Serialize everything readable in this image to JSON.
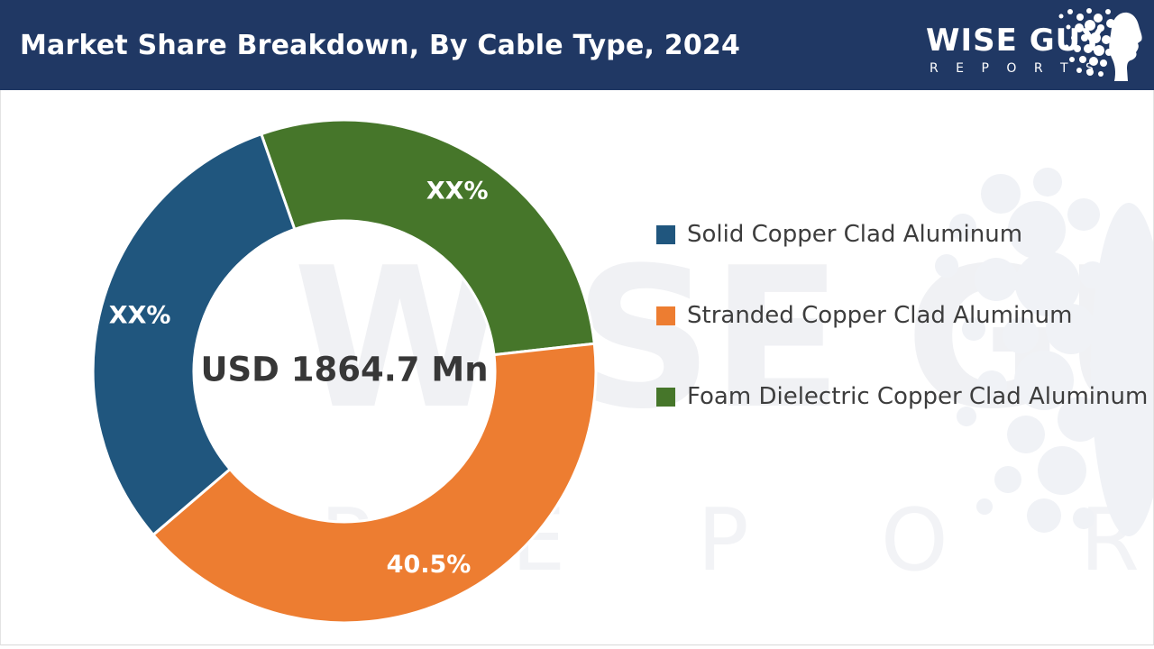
{
  "header": {
    "title": "Market Share Breakdown, By Cable Type, 2024",
    "logo": {
      "line1": "WISE GUY",
      "line2": "R E P O R T S"
    }
  },
  "watermark": {
    "line1": "WISE GUY",
    "line2": "R E P O R T S"
  },
  "chart_data": {
    "type": "pie",
    "subtype": "donut",
    "title": "Market Share Breakdown, By Cable Type, 2024",
    "center_label": "USD 1864.7 Mn",
    "start_angle_deg": -19.3,
    "legend_position": "right",
    "grid": false,
    "segments": [
      {
        "name": "Foam Dielectric Copper Clad Aluminum",
        "value_pct": 28.6,
        "value_shown": "XX%",
        "color": "#46762A"
      },
      {
        "name": "Stranded Copper Clad Aluminum",
        "value_pct": 40.5,
        "value_shown": "40.5%",
        "color": "#ED7D31"
      },
      {
        "name": "Solid Copper Clad Aluminum",
        "value_pct": 30.9,
        "value_shown": "XX%",
        "color": "#20567E"
      }
    ]
  },
  "legend": {
    "items": [
      {
        "label": "Solid Copper Clad Aluminum",
        "color": "#20567E"
      },
      {
        "label": "Stranded Copper Clad Aluminum",
        "color": "#ED7D31"
      },
      {
        "label": "Foam Dielectric Copper Clad Aluminum",
        "color": "#46762A"
      }
    ]
  },
  "colors": {
    "header_bg": "#203864",
    "slice_label_text": "#FFFFFF",
    "center_text": "#373737",
    "legend_text": "#3D3D3D",
    "watermark": "#F0F1F4"
  }
}
